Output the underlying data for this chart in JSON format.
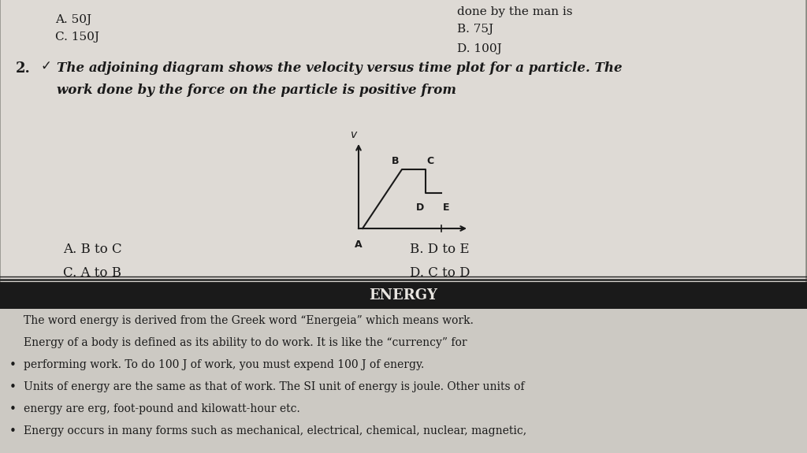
{
  "bg_color": "#c8c5bf",
  "card_color": "#dedad5",
  "card_edge_color": "#888880",
  "line_color": "#1a1a1a",
  "text_color": "#1a1a1a",
  "energy_bar_color": "#1a1a1a",
  "energy_bar_text_color": "#e8e5e0",
  "prev_A": "A. 50J",
  "prev_B": "B. 75J",
  "prev_C": "C. 150J",
  "prev_D_top": "done by the man is",
  "prev_D": "D. 100J",
  "q_num": "2.",
  "checkmark": "✓",
  "q_line1": "The adjoining diagram shows the velocity versus time plot for a particle. The",
  "q_line2": "work done by the force on the particle is positive from",
  "ans_A": "A. B to C",
  "ans_B": "B. D to E",
  "ans_C": "C. A to B",
  "ans_D": "D. C to D",
  "energy_title": "ENERGY",
  "e_line1": "The word energy is derived from the Greek word “Energeia” which means work.",
  "e_line2": "Energy of a body is defined as its ability to do work. It is like the “currency” for",
  "e_line3": "performing work. To do 100 J of work, you must expend 100 J of energy.",
  "e_line4": "Units of energy are the same as that of work. The SI unit of energy is joule. Other units of",
  "e_line5": "energy are erg, foot-pound and kilowatt-hour etc.",
  "e_line6": "Energy occurs in many forms such as mechanical, electrical, chemical, nuclear, magnetic,"
}
